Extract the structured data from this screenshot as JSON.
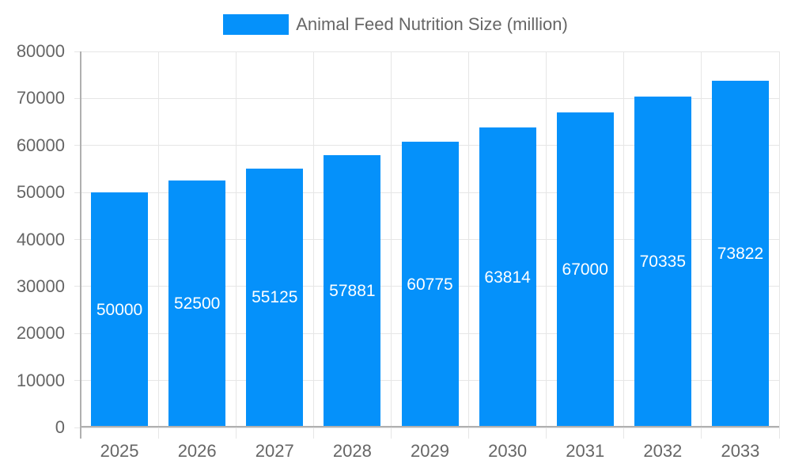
{
  "legend": {
    "label": "Animal Feed Nutrition Size (million)",
    "swatch_color": "#0591fa"
  },
  "chart_data": {
    "type": "bar",
    "title": "Animal Feed Nutrition Size (million)",
    "categories": [
      "2025",
      "2026",
      "2027",
      "2028",
      "2029",
      "2030",
      "2031",
      "2032",
      "2033"
    ],
    "values": [
      50000,
      52500,
      55125,
      57881,
      60775,
      63814,
      67000,
      70335,
      73822
    ],
    "value_labels": [
      "50000",
      "52500",
      "55125",
      "57881",
      "60775",
      "63814",
      "67000",
      "70335",
      "73822"
    ],
    "yticks": [
      0,
      10000,
      20000,
      30000,
      40000,
      50000,
      60000,
      70000,
      80000
    ],
    "ytick_labels": [
      "0",
      "10000",
      "20000",
      "30000",
      "40000",
      "50000",
      "60000",
      "70000",
      "80000"
    ],
    "ylim": [
      0,
      80000
    ],
    "xlabel": "",
    "ylabel": "",
    "grid": true,
    "legend_position": "top",
    "bar_color": "#0591fa",
    "value_label_color": "#ffffff",
    "axis_text_color": "#666666",
    "grid_color": "#e6e6e6",
    "axis_line_color": "#b0b0b0"
  }
}
